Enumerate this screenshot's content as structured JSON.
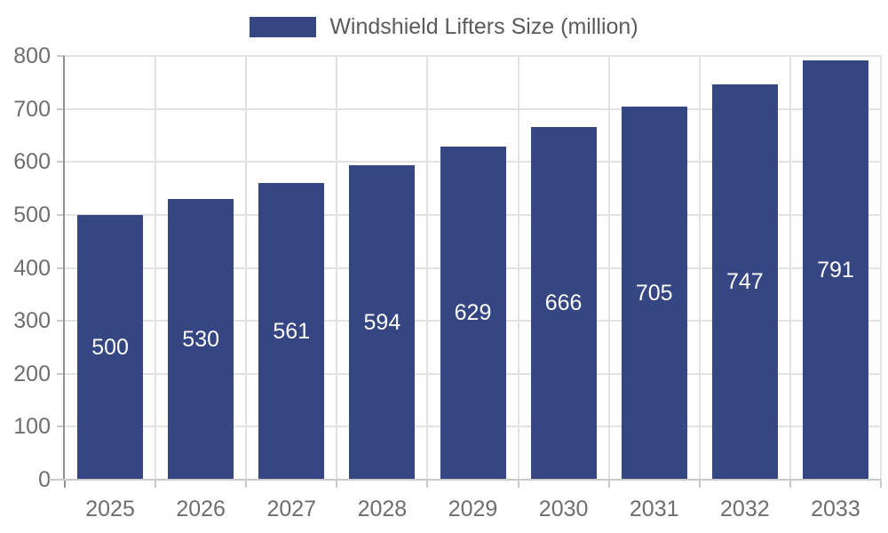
{
  "legend": {
    "label": "Windshield Lifters Size (million)"
  },
  "chart_data": {
    "type": "bar",
    "title": "Windshield Lifters Size (million)",
    "series_name": "Windshield Lifters Size (million)",
    "categories": [
      "2025",
      "2026",
      "2027",
      "2028",
      "2029",
      "2030",
      "2031",
      "2032",
      "2033"
    ],
    "values": [
      500,
      530,
      561,
      594,
      629,
      666,
      705,
      747,
      791
    ],
    "bar_labels": [
      "500",
      "530",
      "561",
      "594",
      "629",
      "666",
      "705",
      "747",
      "791"
    ],
    "xlabel": "",
    "ylabel": "",
    "ylim": [
      0,
      800
    ],
    "yticks": [
      0,
      100,
      200,
      300,
      400,
      500,
      600,
      700,
      800
    ],
    "grid": true,
    "legend_position": "top"
  },
  "colors": {
    "bar": "#354682",
    "bar_value_text": "#ffffff",
    "axis_label_text": "#6e6e6e",
    "legend_text": "#5b5b5b",
    "gridline": "#e2e2e2",
    "y_axis_line": "#919191",
    "x_axis_line": "#c9c9c9",
    "tick": "#c9c9c9",
    "background": "#ffffff"
  }
}
